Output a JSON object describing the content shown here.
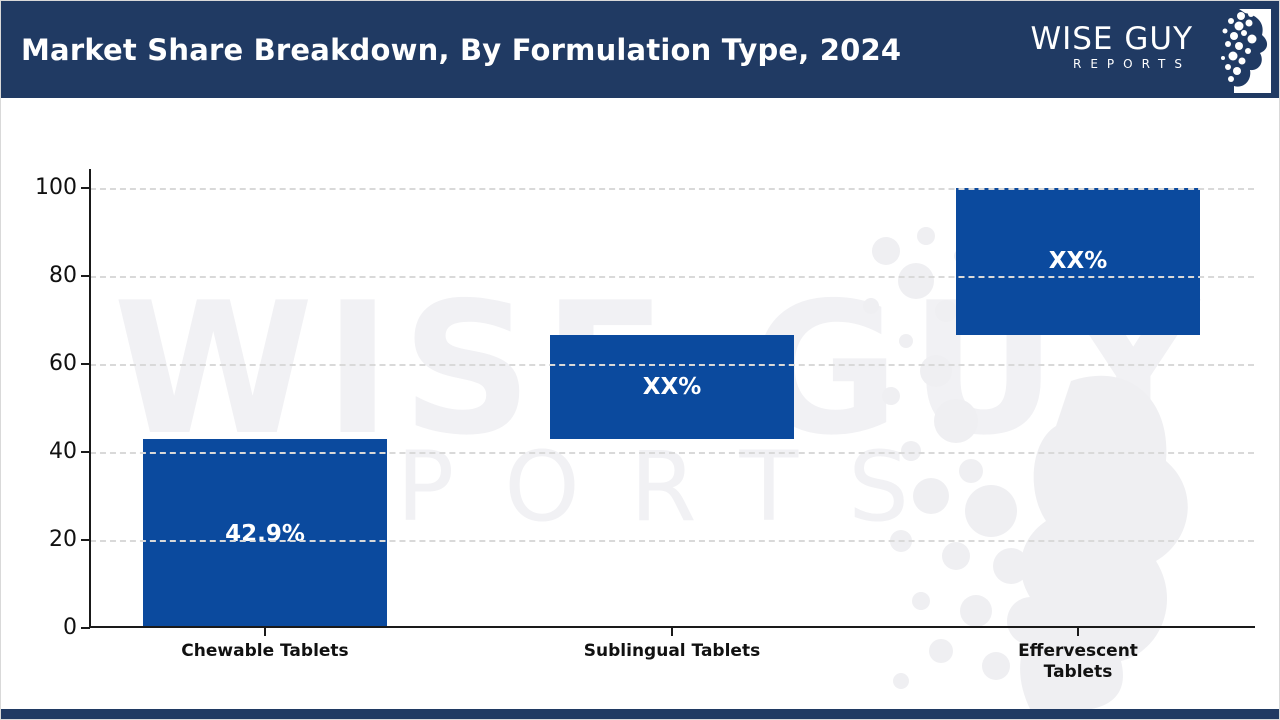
{
  "header": {
    "title": "Market Share Breakdown, By Formulation Type, 2024",
    "logo": {
      "line1": "WISE GUY",
      "line2": "REPORTS"
    }
  },
  "watermark": {
    "line1": "WISE GUY",
    "line2": "REPORTS"
  },
  "colors": {
    "header_bg": "#203a63",
    "footer_bg": "#203a63",
    "bar": "#0b4a9e",
    "bar_label": "#ffffff",
    "grid": "#d9d9d9",
    "axis": "#1a1a1a",
    "watermark": "#f1f1f4"
  },
  "chart_data": {
    "type": "bar",
    "variant": "floating-stacked-breakdown",
    "title": "Market Share Breakdown, By Formulation Type, 2024",
    "categories": [
      "Chewable Tablets",
      "Sublingual Tablets",
      "Effervescent\nTablets"
    ],
    "segments": [
      {
        "category": "Chewable Tablets",
        "from": 0,
        "to": 42.9,
        "label": "42.9%"
      },
      {
        "category": "Sublingual Tablets",
        "from": 42.9,
        "to": 66.7,
        "label": "XX%"
      },
      {
        "category": "Effervescent Tablets",
        "from": 66.7,
        "to": 100,
        "label": "XX%"
      }
    ],
    "xlabel": "",
    "ylabel": "",
    "ylim": [
      0,
      100
    ],
    "yticks": [
      0,
      20,
      40,
      60,
      80,
      100
    ],
    "grid": "horizontal-dashed",
    "legend": "none",
    "bar_color": "#0b4a9e"
  }
}
